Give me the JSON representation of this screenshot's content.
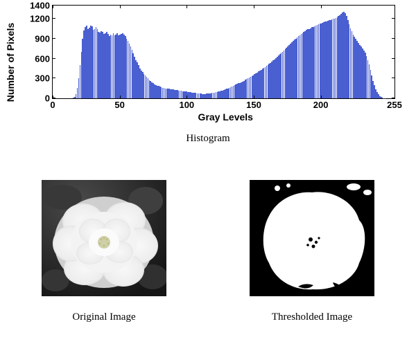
{
  "histogram": {
    "type": "histogram",
    "ylabel": "Number of Pixels",
    "xlabel": "Gray Levels",
    "caption": "Histogram",
    "label_fontsize": 14,
    "tick_fontsize": 13,
    "xlim": [
      0,
      255
    ],
    "ylim": [
      0,
      1400
    ],
    "xticks": [
      0,
      50,
      100,
      150,
      200,
      255
    ],
    "yticks": [
      0,
      300,
      600,
      900,
      1200,
      1400
    ],
    "bar_color": "#4a5fd0",
    "box_color": "#000000",
    "background_color": "#ffffff",
    "values": [
      0,
      0,
      0,
      0,
      0,
      0,
      0,
      0,
      0,
      0,
      0,
      0,
      0,
      0,
      0,
      10,
      25,
      60,
      160,
      300,
      500,
      700,
      900,
      1020,
      1080,
      1100,
      1050,
      1070,
      1100,
      1090,
      1030,
      1050,
      1080,
      1040,
      1000,
      990,
      1010,
      1000,
      970,
      980,
      1000,
      970,
      940,
      960,
      950,
      980,
      950,
      960,
      980,
      950,
      960,
      970,
      980,
      960,
      940,
      900,
      870,
      830,
      780,
      730,
      680,
      630,
      580,
      540,
      500,
      450,
      420,
      400,
      370,
      350,
      320,
      300,
      270,
      260,
      240,
      230,
      210,
      200,
      190,
      185,
      180,
      170,
      160,
      155,
      150,
      148,
      145,
      142,
      138,
      135,
      132,
      128,
      125,
      122,
      118,
      115,
      112,
      108,
      105,
      102,
      100,
      96,
      94,
      90,
      88,
      85,
      82,
      80,
      78,
      75,
      72,
      70,
      68,
      65,
      67,
      70,
      72,
      74,
      77,
      80,
      83,
      88,
      92,
      97,
      102,
      108,
      115,
      120,
      128,
      135,
      142,
      150,
      160,
      168,
      178,
      185,
      195,
      205,
      215,
      225,
      235,
      245,
      255,
      265,
      278,
      290,
      300,
      312,
      325,
      338,
      350,
      365,
      378,
      390,
      405,
      418,
      432,
      445,
      460,
      475,
      490,
      505,
      522,
      538,
      555,
      572,
      590,
      608,
      625,
      645,
      665,
      685,
      705,
      725,
      745,
      765,
      785,
      805,
      825,
      845,
      865,
      885,
      900,
      920,
      940,
      955,
      970,
      985,
      1000,
      1015,
      1030,
      1040,
      1050,
      1060,
      1075,
      1080,
      1090,
      1100,
      1110,
      1115,
      1125,
      1130,
      1140,
      1150,
      1160,
      1165,
      1170,
      1180,
      1185,
      1195,
      1200,
      1205,
      1215,
      1225,
      1240,
      1255,
      1275,
      1295,
      1310,
      1290,
      1240,
      1180,
      1120,
      1060,
      1010,
      965,
      930,
      900,
      870,
      840,
      805,
      780,
      755,
      720,
      685,
      640,
      580,
      510,
      430,
      345,
      265,
      195,
      140,
      95,
      60,
      35,
      20,
      10,
      5,
      2,
      0,
      0,
      0,
      0,
      0,
      0
    ]
  },
  "original_image": {
    "caption": "Original Image",
    "description": "Grayscale photograph of a white flower (rose/camellia) with layered petals against dark foliage background"
  },
  "thresholded_image": {
    "caption": "Thresholded Image",
    "description": "Binary black-and-white version of the same flower after thresholding; flower region white, background black",
    "foreground_color": "#ffffff",
    "background_color": "#000000"
  }
}
